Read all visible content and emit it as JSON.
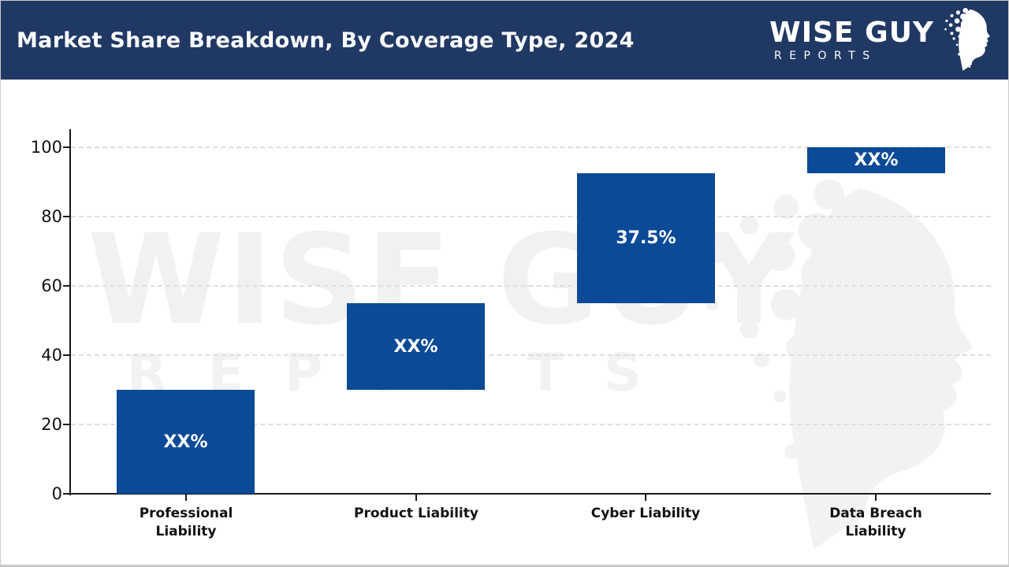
{
  "header": {
    "title": "Market Share Breakdown, By Coverage Type, 2024",
    "logo": {
      "line1": "WISE GUY",
      "line2": "REPORTS"
    }
  },
  "watermark": {
    "line1": "WISE GUY",
    "line2": "REPORTS"
  },
  "chart_data": {
    "type": "bar",
    "subtype": "waterfall-floating-bars",
    "title": "Market Share Breakdown, By Coverage Type, 2024",
    "categories": [
      "Professional Liability",
      "Product Liability",
      "Cyber Liability",
      "Data Breach Liability"
    ],
    "segments": [
      {
        "category": "Professional Liability",
        "start": 0,
        "end": 30,
        "label": "XX%"
      },
      {
        "category": "Product Liability",
        "start": 30,
        "end": 55,
        "label": "XX%"
      },
      {
        "category": "Cyber Liability",
        "start": 55,
        "end": 92.5,
        "label": "37.5%"
      },
      {
        "category": "Data Breach Liability",
        "start": 92.5,
        "end": 100,
        "label": "XX%"
      }
    ],
    "xlabel": "",
    "ylabel": "",
    "yticks": [
      0,
      20,
      40,
      60,
      80,
      100
    ],
    "ylim": [
      0,
      105
    ],
    "grid": "horizontal-dashed",
    "legend": "none",
    "bar_color": "#0a4a96",
    "bar_label_color": "#ffffff",
    "bar_width_frac": 0.6
  },
  "colors": {
    "header_bg": "#203864",
    "gridline": "#dedede",
    "axis": "#1a1a1a",
    "watermark": "#f1f1f1"
  }
}
